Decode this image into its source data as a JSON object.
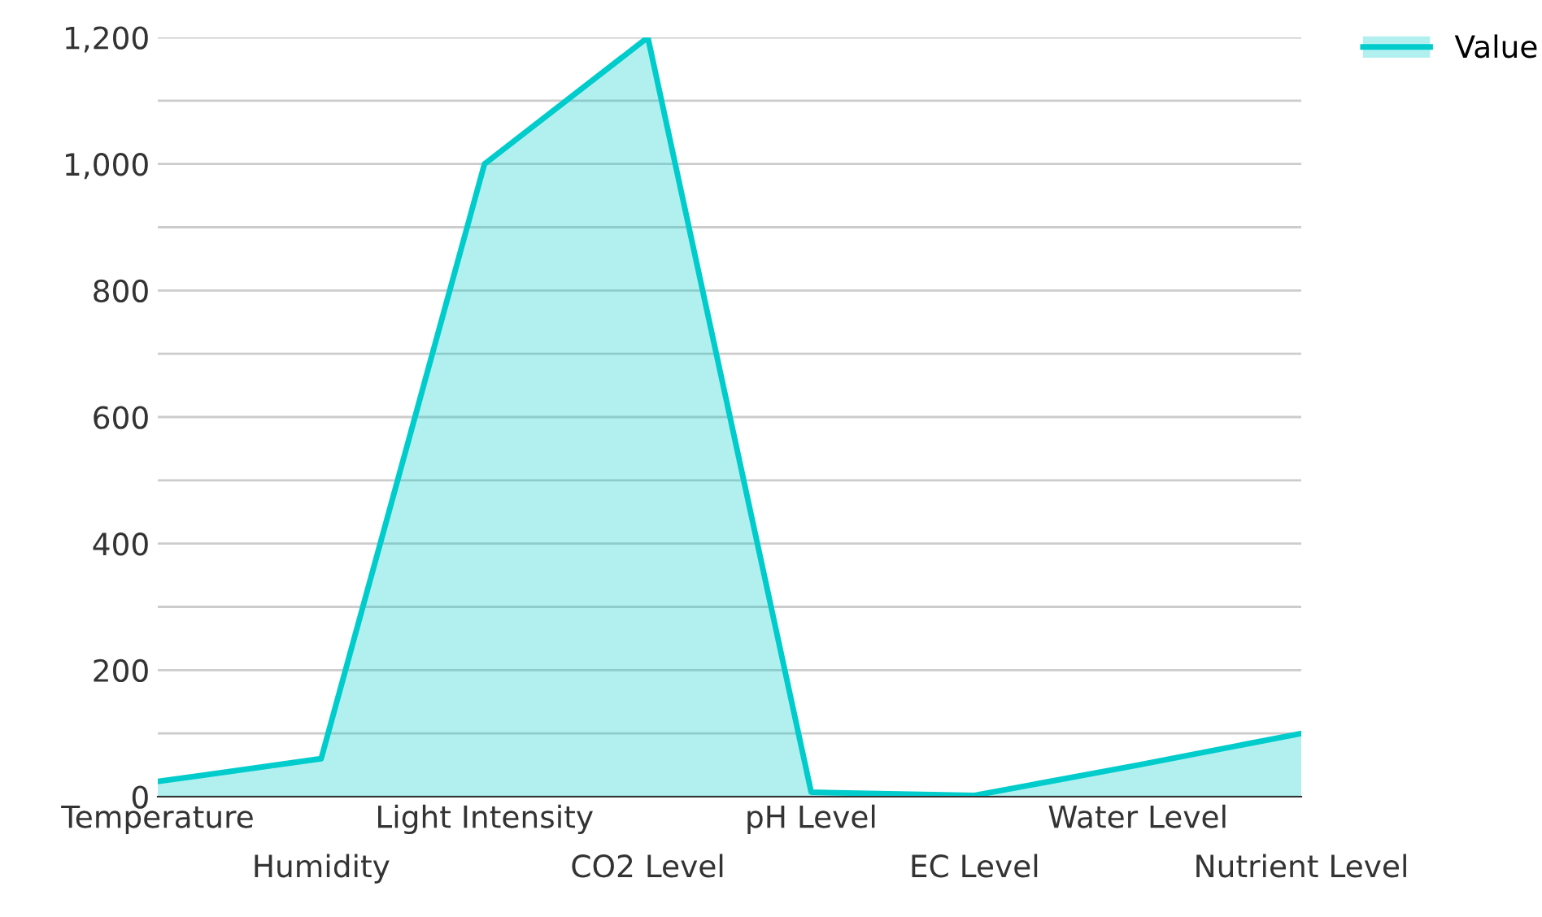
{
  "chart_data": {
    "type": "area",
    "categories": [
      "Temperature",
      "Humidity",
      "Light Intensity",
      "CO2 Level",
      "pH Level",
      "EC Level",
      "Water Level",
      "Nutrient Level"
    ],
    "series": [
      {
        "name": "Value",
        "color": "#00cccc",
        "values": [
          24,
          60,
          1000,
          1200,
          7,
          2,
          50,
          100
        ]
      }
    ],
    "ylim": [
      0,
      1200
    ],
    "yticks": [
      0,
      {
        "value": 100,
        "label": null
      },
      {
        "value": 200,
        "label": "200"
      },
      {
        "value": 300,
        "label": null
      },
      {
        "value": 400,
        "label": "400"
      },
      {
        "value": 500,
        "label": null
      },
      {
        "value": 600,
        "label": "600"
      },
      {
        "value": 700,
        "label": null
      },
      {
        "value": 800,
        "label": "800"
      },
      {
        "value": 900,
        "label": null
      },
      {
        "value": 1000,
        "label": "1,000"
      },
      {
        "value": 1100,
        "label": null
      },
      {
        "value": 1200,
        "label": "1,200"
      }
    ],
    "grid": "y",
    "legend": "top right"
  }
}
